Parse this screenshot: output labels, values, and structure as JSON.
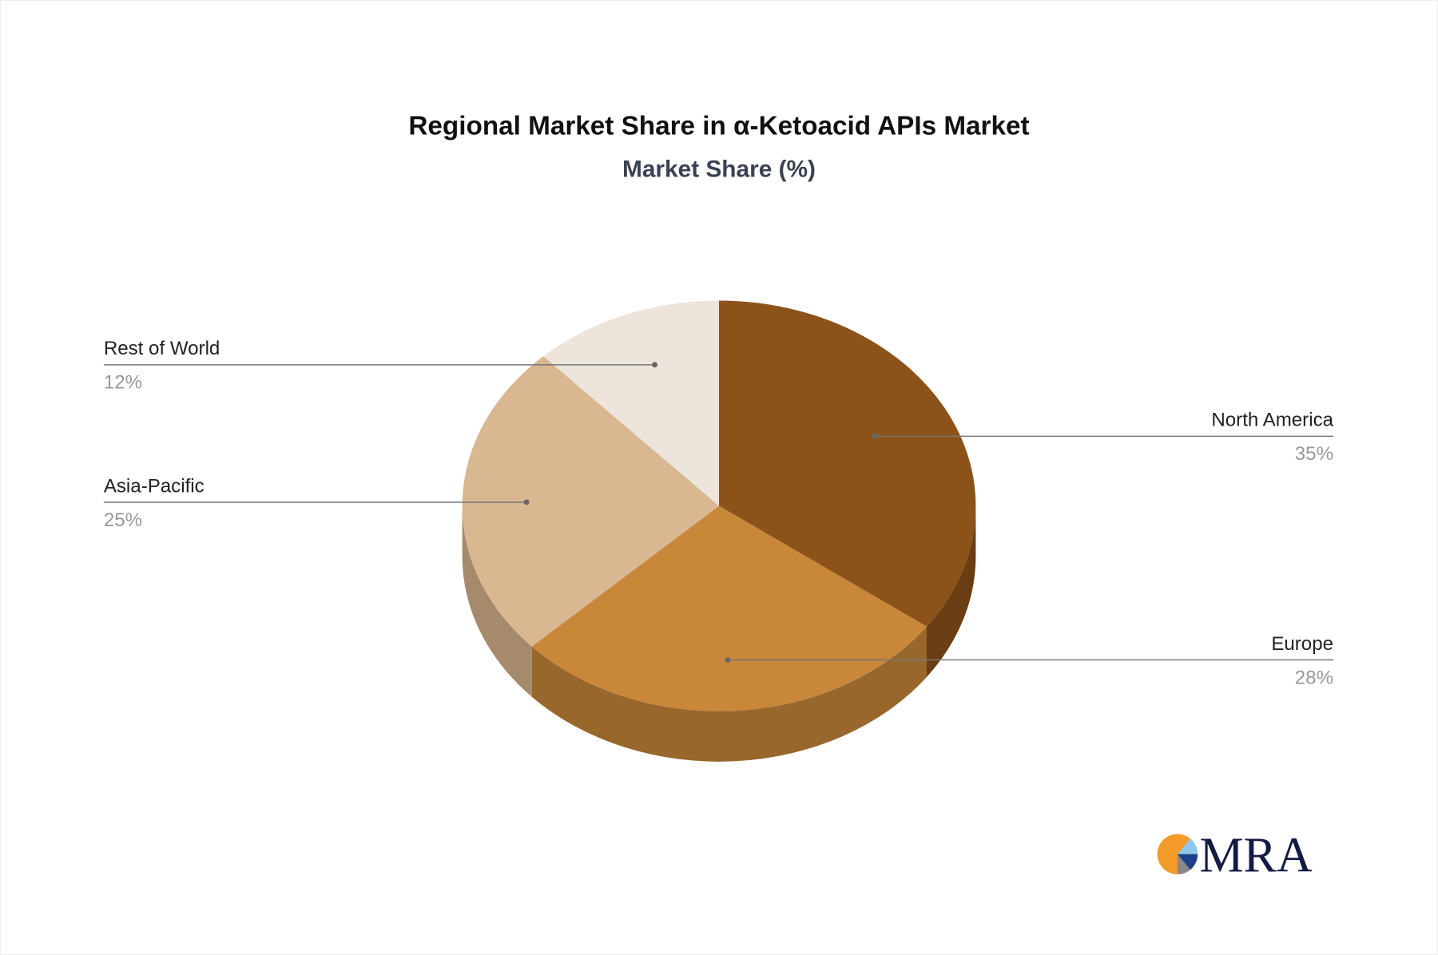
{
  "chart_data": {
    "type": "pie",
    "style": "3d",
    "title": "Regional Market Share in α-Ketoacid APIs Market",
    "subtitle": "Market Share (%)",
    "slices": [
      {
        "label": "North America",
        "value": 35,
        "value_label": "35%",
        "color": "#8B5319",
        "side_color": "#6A3E12"
      },
      {
        "label": "Europe",
        "value": 28,
        "value_label": "28%",
        "color": "#C9873A",
        "side_color": "#98672C"
      },
      {
        "label": "Asia-Pacific",
        "value": 25,
        "value_label": "25%",
        "color": "#D8B791",
        "side_color": "#A58A6C"
      },
      {
        "label": "Rest of World",
        "value": 12,
        "value_label": "12%",
        "color": "#EDE4DB",
        "side_color": "#BDB3A8"
      }
    ]
  },
  "logo": {
    "text": "MRA"
  }
}
